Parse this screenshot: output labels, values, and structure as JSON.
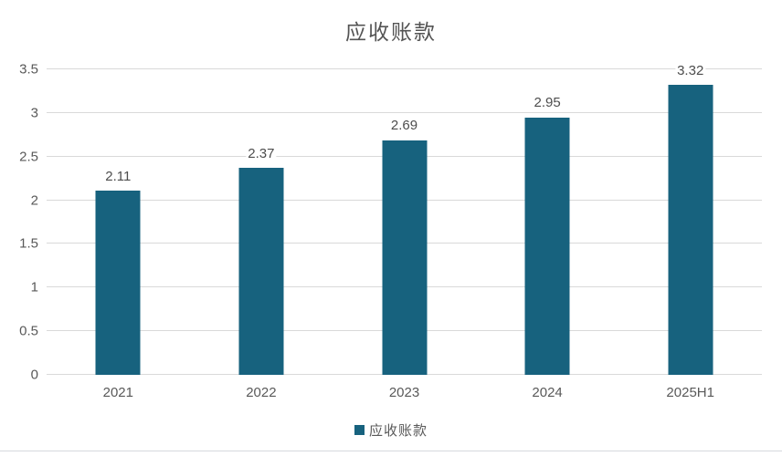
{
  "colors": {
    "bar": "#17627E",
    "gridline": "#D9D9D9",
    "axis_text": "#595959",
    "data_label": "#4D4D4D",
    "title_text": "#545454",
    "bottom_divider": "#D6D9DE"
  },
  "legend": {
    "label": "应收账款"
  },
  "chart_data": {
    "type": "bar",
    "title": "应收账款",
    "categories": [
      "2021",
      "2022",
      "2023",
      "2024",
      "2025H1"
    ],
    "series": [
      {
        "name": "应收账款",
        "values": [
          2.11,
          2.37,
          2.69,
          2.95,
          3.32
        ]
      }
    ],
    "data_labels": [
      "2.11",
      "2.37",
      "2.69",
      "2.95",
      "3.32"
    ],
    "xlabel": "",
    "ylabel": "",
    "ylim": [
      0,
      3.5
    ],
    "yticks": [
      0,
      0.5,
      1,
      1.5,
      2,
      2.5,
      3,
      3.5
    ],
    "ytick_labels": [
      "0",
      "0.5",
      "1",
      "1.5",
      "2",
      "2.5",
      "3",
      "3.5"
    ],
    "grid": true,
    "legend_position": "bottom"
  }
}
